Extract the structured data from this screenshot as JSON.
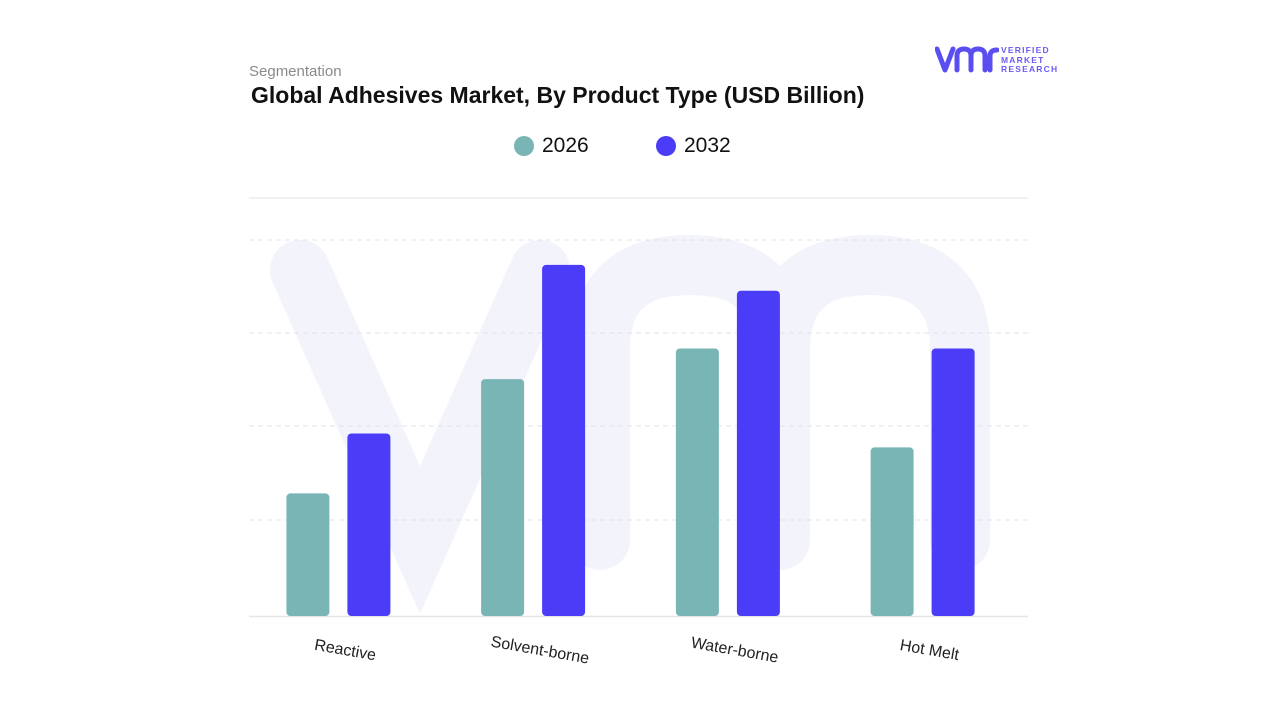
{
  "header": {
    "subtitle": "Segmentation",
    "title": "Global Adhesives Market, By Product Type (USD Billion)"
  },
  "brand": {
    "logo_mark": "vmr",
    "logo_lines": [
      "VERIFIED",
      "MARKET",
      "RESEARCH"
    ],
    "color": "#5b4ef0"
  },
  "colors": {
    "series_2026": "#7ab5b6",
    "series_2032": "#4b3cf7",
    "grid": "#e3e3e3",
    "watermark": "#f2f3fb"
  },
  "chart_data": {
    "type": "bar",
    "title": "Global Adhesives Market, By Product Type (USD Billion)",
    "categories": [
      "Reactive",
      "Solvent-borne",
      "Water-borne",
      "Hot Melt"
    ],
    "series": [
      {
        "name": "2026",
        "values": [
          17.6,
          34.0,
          38.4,
          24.2
        ]
      },
      {
        "name": "2032",
        "values": [
          26.2,
          50.4,
          46.7,
          38.4
        ]
      }
    ],
    "ylim": [
      0,
      60
    ],
    "grid": true,
    "legend": "top-center",
    "xlabel": "",
    "ylabel": ""
  }
}
